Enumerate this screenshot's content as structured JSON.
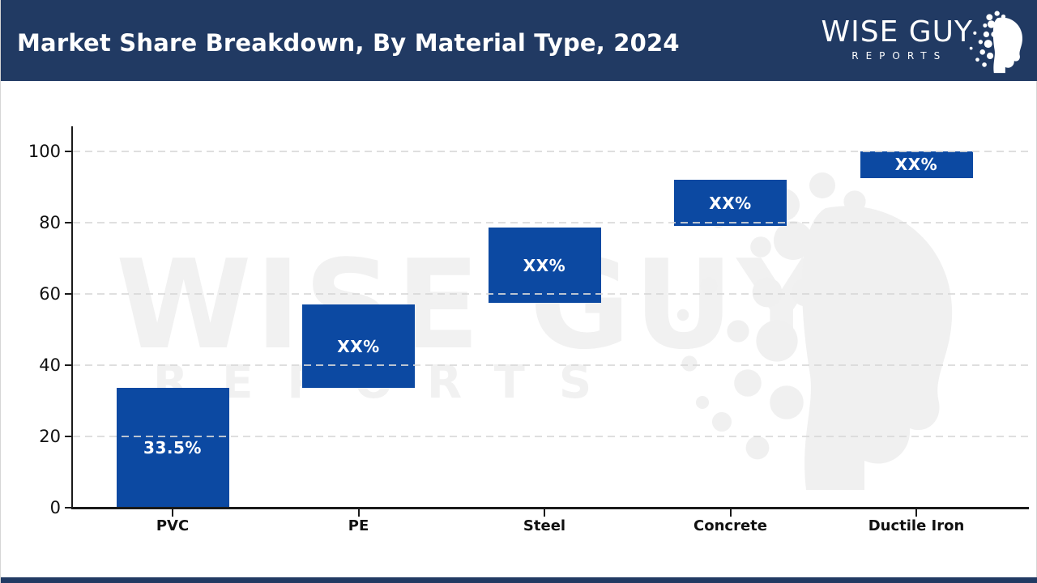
{
  "header": {
    "title": "Market Share Breakdown, By Material Type, 2024",
    "logo": {
      "line1": "WISE GUY",
      "line2": "REPORTS"
    },
    "background_color": "#213a63"
  },
  "watermark": {
    "line1": "WISE GUY",
    "line2": "REPORTS"
  },
  "footer": {
    "background_color": "#213a63"
  },
  "chart_data": {
    "type": "bar",
    "subtype": "waterfall-floating-bars",
    "title": "Market Share Breakdown, By Material Type, 2024",
    "xlabel": "",
    "ylabel": "",
    "categories": [
      "PVC",
      "PE",
      "Steel",
      "Concrete",
      "Ductile Iron"
    ],
    "segments": [
      {
        "category": "PVC",
        "start": 0,
        "end": 33.5,
        "label": "33.5%"
      },
      {
        "category": "PE",
        "start": 33.5,
        "end": 57,
        "label": "XX%"
      },
      {
        "category": "Steel",
        "start": 57.5,
        "end": 78.5,
        "label": "XX%"
      },
      {
        "category": "Concrete",
        "start": 79,
        "end": 92,
        "label": "XX%"
      },
      {
        "category": "Ductile Iron",
        "start": 92.5,
        "end": 100,
        "label": "XX%"
      }
    ],
    "yticks": [
      0,
      20,
      40,
      60,
      80,
      100
    ],
    "ylim": [
      0,
      107
    ],
    "grid": "horizontal-dashed",
    "legend": "none",
    "bar_color": "#0c49a2",
    "bar_label_color": "#ffffff",
    "axis_color": "#1a1a1a",
    "gridline_color": "#d9d9d9"
  }
}
